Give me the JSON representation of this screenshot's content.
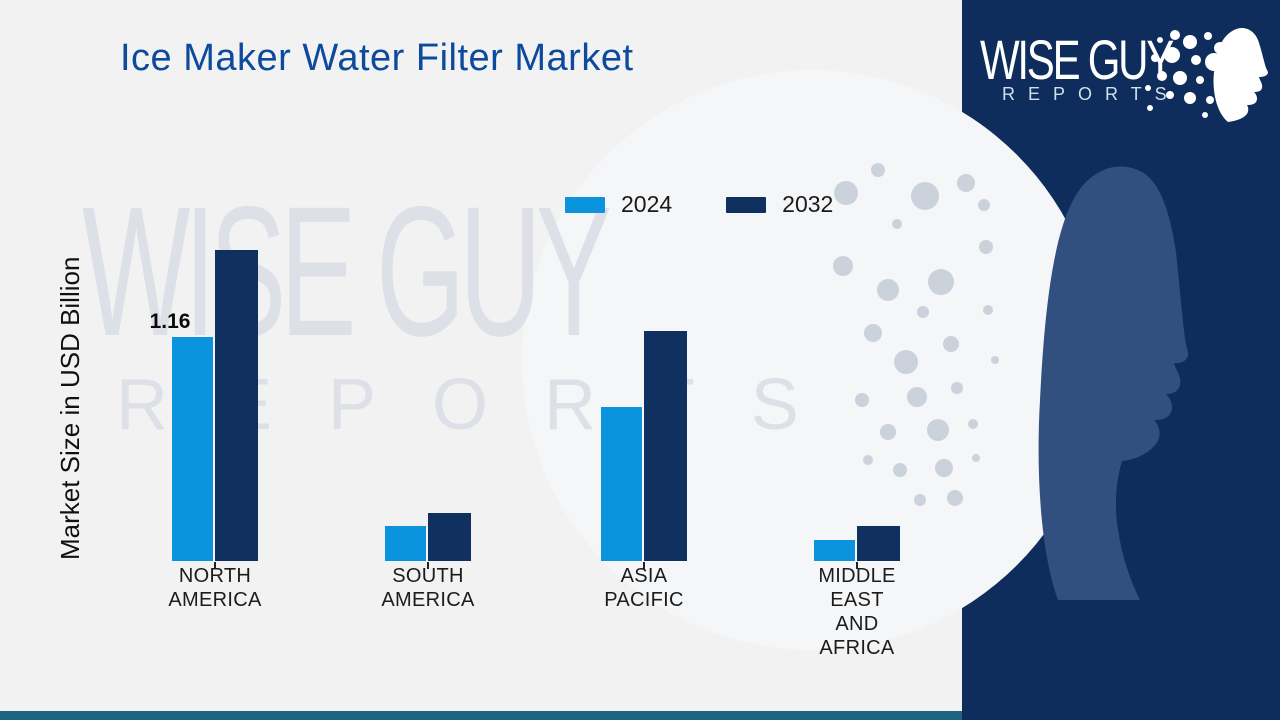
{
  "colors": {
    "page_bg": "#f2f2f3",
    "title_blue": "#0d4a9c",
    "band_navy": "#0e2d5c",
    "face_navy": "#31507f",
    "teal_strip": "#1e6480",
    "watermark_gray": "#dde0e7",
    "dots_gray": "#cbd2dc",
    "circle_white": "#f5f6f8",
    "logo_text": "#ffffff",
    "logo_reports": "#cfe0ea"
  },
  "watermark": {
    "line1": "WISE GUY",
    "line2": "REPORTS"
  },
  "logo": {
    "line1": "WISE GUY",
    "line2": "REPORTS"
  },
  "chart_data": {
    "type": "bar",
    "title": "Ice Maker Water Filter Market",
    "xlabel": "",
    "ylabel": "Market Size in USD Billion",
    "ylim": [
      0,
      1.8
    ],
    "grid": false,
    "legend_position": "top",
    "unit": "USD Billion",
    "categories": [
      "NORTH AMERICA",
      "SOUTH AMERICA",
      "ASIA PACIFIC",
      "MIDDLE EAST AND AFRICA"
    ],
    "categories_display": [
      [
        "NORTH",
        "AMERICA"
      ],
      [
        "SOUTH",
        "AMERICA"
      ],
      [
        "ASIA",
        "PACIFIC"
      ],
      [
        "MIDDLE",
        "EAST",
        "AND",
        "AFRICA"
      ]
    ],
    "series": [
      {
        "name": "2024",
        "color": "#0b93dd",
        "values": [
          1.16,
          0.18,
          0.8,
          0.11
        ]
      },
      {
        "name": "2032",
        "color": "#10305f",
        "values": [
          1.61,
          0.25,
          1.19,
          0.18
        ]
      }
    ],
    "annotations": [
      {
        "series": "2024",
        "category_index": 0,
        "text": "1.16"
      }
    ]
  }
}
